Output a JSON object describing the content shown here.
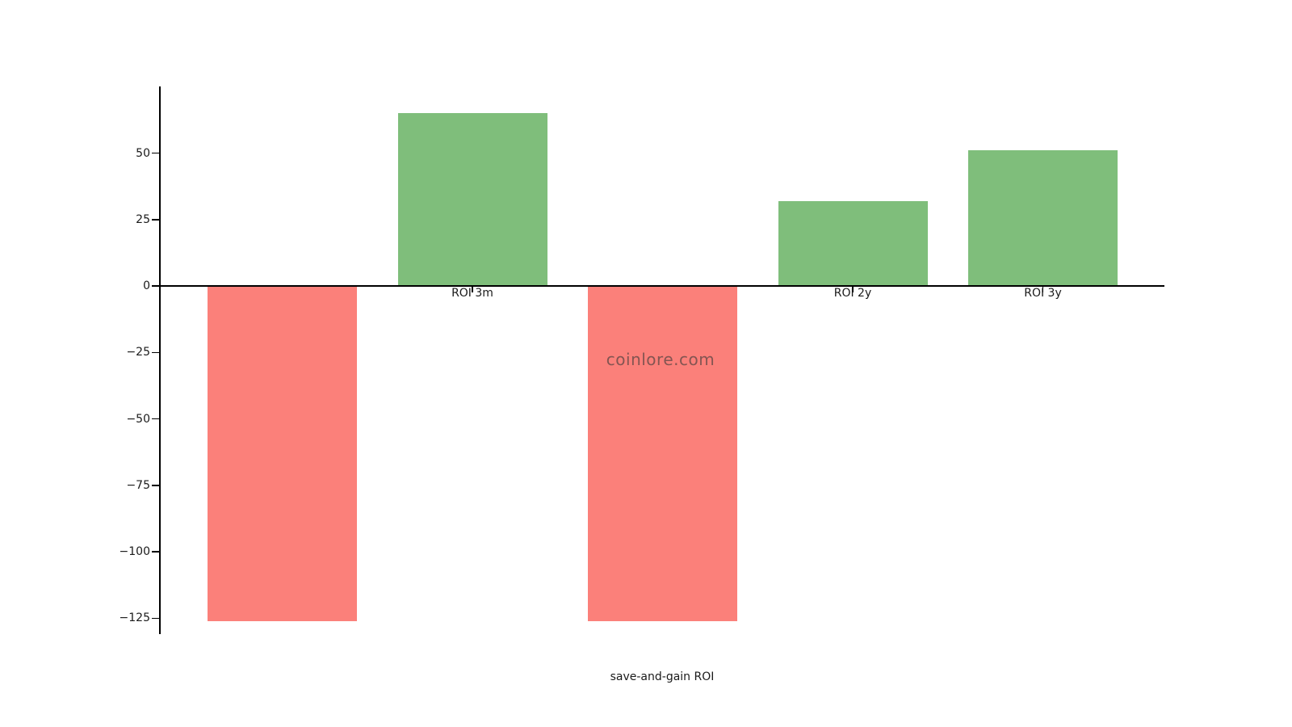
{
  "figure": {
    "background": "#ffffff",
    "watermark": "coinlore.com"
  },
  "chart_data": {
    "type": "bar",
    "title": "",
    "xlabel": "save-and-gain ROI",
    "ylabel": "",
    "categories": [
      "",
      "ROI 3m",
      "",
      "ROI 2y",
      "ROI 3y"
    ],
    "values": [
      -126,
      65,
      -126,
      32,
      51
    ],
    "series": [
      {
        "name": "ROI",
        "values": [
          -126,
          65,
          -126,
          32,
          51
        ]
      }
    ],
    "yticks": [
      {
        "value": 50,
        "label": "50"
      },
      {
        "value": 25,
        "label": "25"
      },
      {
        "value": 0,
        "label": "0"
      },
      {
        "value": -25,
        "label": "−25"
      },
      {
        "value": -50,
        "label": "−50"
      },
      {
        "value": -75,
        "label": "−75"
      },
      {
        "value": -100,
        "label": "−100"
      },
      {
        "value": -125,
        "label": "−125"
      }
    ],
    "ylim": [
      -131,
      75
    ],
    "grid": false,
    "legend_position": "none",
    "positive_color": "#7fbe7b",
    "negative_color": "#fb807a",
    "axis_color": "#000000",
    "text_color": "#1a1a1a"
  }
}
